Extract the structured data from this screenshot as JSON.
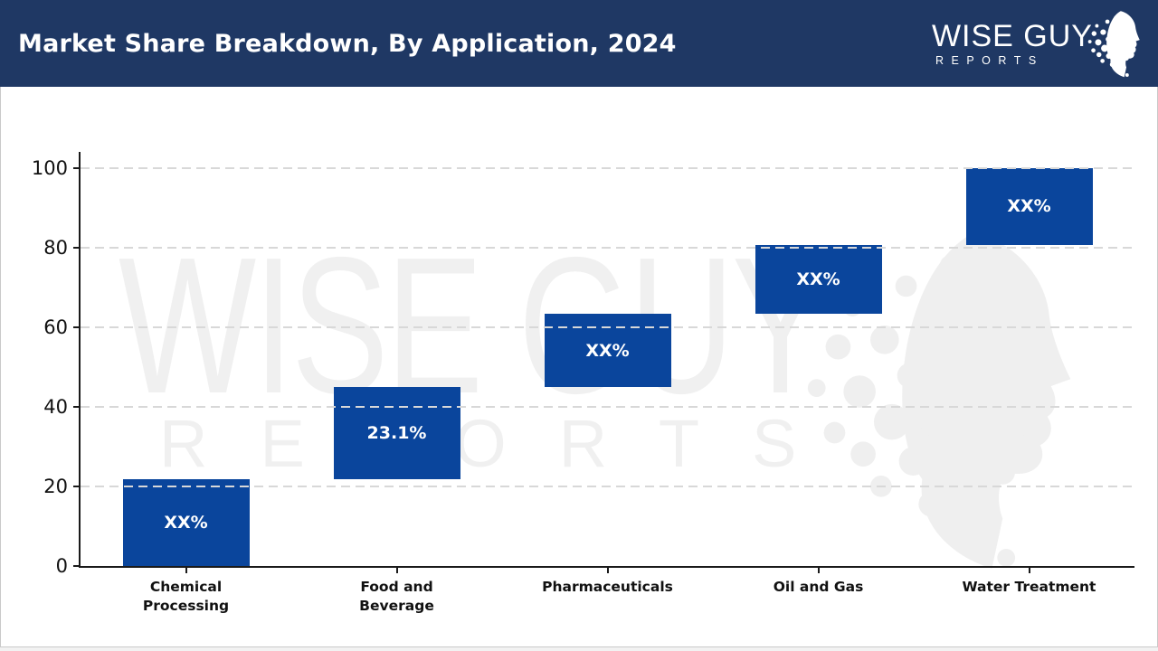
{
  "header": {
    "title": "Market Share Breakdown, By Application, 2024",
    "logo": {
      "line1": "WISE GUY",
      "line2": "REPORTS"
    }
  },
  "watermark": {
    "line1": "WISE GUY",
    "line2": "REPORTS"
  },
  "colors": {
    "header_bg": "#1f3864",
    "bar": "#0a459c",
    "axis": "#1a1a1a",
    "grid": "#d8d8d8",
    "bar_label": "#ffffff",
    "watermark": "#f0f0f0"
  },
  "chart_data": {
    "type": "bar",
    "subtype": "floating-waterfall",
    "title": "Market Share Breakdown, By Application, 2024",
    "categories": [
      "Chemical Processing",
      "Food and Beverage",
      "Pharmaceuticals",
      "Oil and Gas",
      "Water Treatment"
    ],
    "bars": [
      {
        "category": "Chemical Processing",
        "start": 0,
        "end": 21.8,
        "label": "XX%"
      },
      {
        "category": "Food and Beverage",
        "start": 21.8,
        "end": 44.9,
        "label": "23.1%",
        "value": 23.1
      },
      {
        "category": "Pharmaceuticals",
        "start": 44.9,
        "end": 63.4,
        "label": "XX%"
      },
      {
        "category": "Oil and Gas",
        "start": 63.4,
        "end": 80.6,
        "label": "XX%"
      },
      {
        "category": "Water Treatment",
        "start": 80.7,
        "end": 100,
        "label": "XX%"
      }
    ],
    "yticks": [
      0,
      20,
      40,
      60,
      80,
      100
    ],
    "ylim": [
      0,
      106
    ],
    "xlabel": "",
    "ylabel": "",
    "grid": "horizontal-dashed",
    "legend_position": "none"
  }
}
